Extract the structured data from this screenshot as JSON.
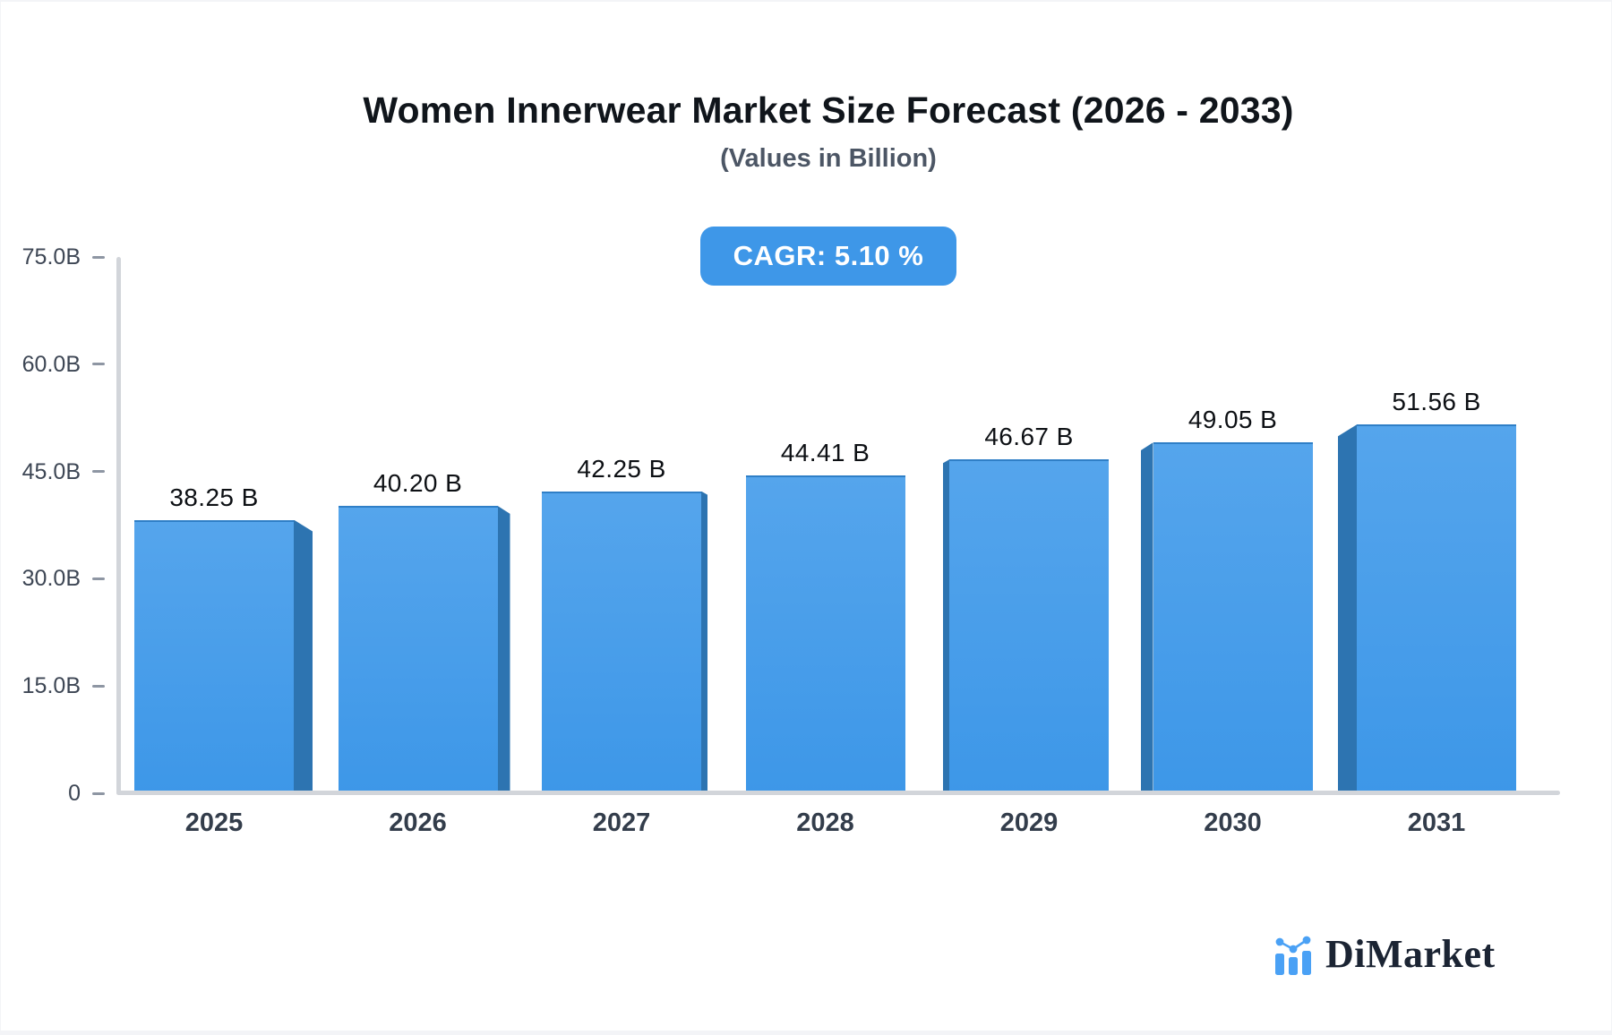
{
  "header": {
    "title": "Women Innerwear Market Size Forecast (2026 - 2033)",
    "subtitle": "(Values in Billion)"
  },
  "cagr_badge": {
    "label": "CAGR: 5.10 %",
    "background_color": "#3e97e8",
    "text_color": "#ffffff"
  },
  "chart_data": {
    "type": "bar",
    "title": "Women Innerwear Market Size Forecast (2026 - 2033)",
    "subtitle": "(Values in Billion)",
    "cagr": "5.10 %",
    "categories": [
      "2025",
      "2026",
      "2027",
      "2028",
      "2029",
      "2030",
      "2031"
    ],
    "values": [
      38.25,
      40.2,
      42.25,
      44.41,
      46.67,
      49.05,
      51.56
    ],
    "bar_labels": [
      "38.25 B",
      "40.20 B",
      "42.25 B",
      "44.41 B",
      "46.67 B",
      "49.05 B",
      "51.56 B"
    ],
    "unit": "Billion",
    "ylim": [
      0,
      75
    ],
    "yticks": [
      {
        "value": 75,
        "label": "75.0B"
      },
      {
        "value": 60,
        "label": "60.0B"
      },
      {
        "value": 45,
        "label": "45.0B"
      },
      {
        "value": 30,
        "label": "30.0B"
      },
      {
        "value": 15,
        "label": "15.0B"
      },
      {
        "value": 0,
        "label": "0"
      }
    ],
    "grid": false,
    "legend": false,
    "style": "3d-perspective-bars",
    "colors": {
      "bar_face_top": "#55a5ec",
      "bar_face_bottom": "#3d97e8",
      "bar_face_edge": "#2f7fc7",
      "bar_side": "#2d74b1",
      "axis_line": "#d2d5da",
      "tick_dash": "#8e96a3",
      "tick_label": "#3d4654",
      "value_label": "#0d1014",
      "category_label": "#333d4b"
    }
  },
  "branding": {
    "logo_text": "DiMarket",
    "logo_icon": "bar-chart-trend-icon",
    "logo_icon_color": "#4aa1f5",
    "logo_text_color": "#1b2433"
  }
}
